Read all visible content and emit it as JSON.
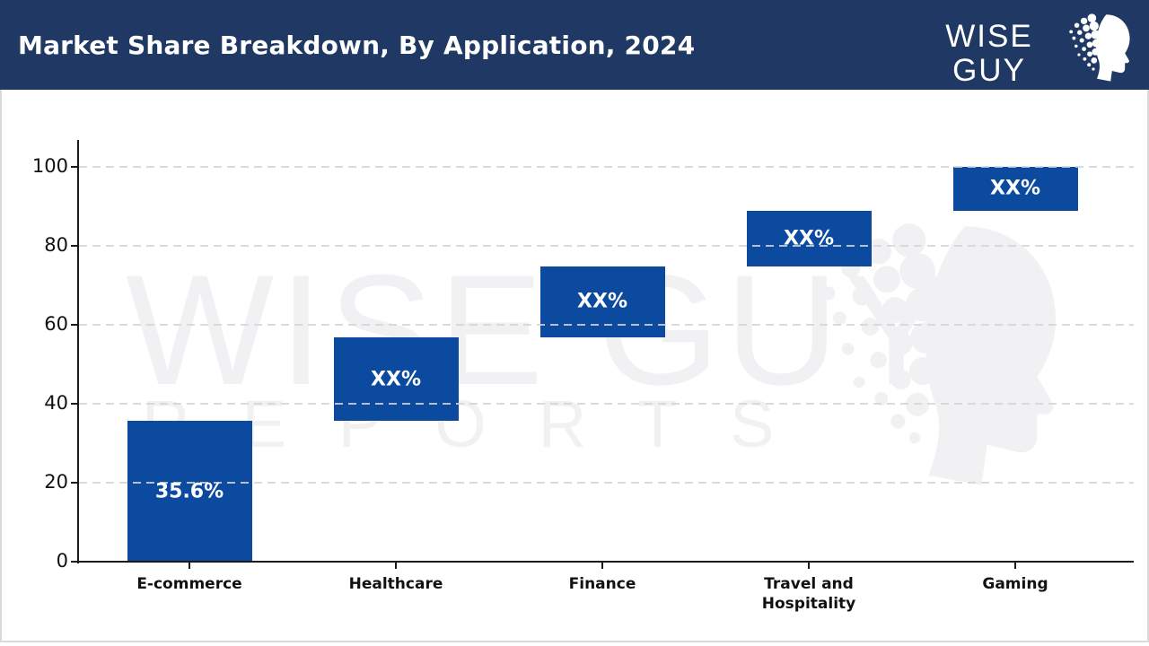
{
  "header": {
    "title": "Market Share Breakdown, By Application, 2024",
    "background_color": "#1F3864",
    "logo": {
      "primary": "WISE GUY",
      "secondary": "REPORTS"
    }
  },
  "watermark": {
    "primary": "WISE GUY",
    "secondary": "REPORTS"
  },
  "chart_data": {
    "type": "bar",
    "variant": "waterfall-floating-bars",
    "title": "Market Share Breakdown, By Application, 2024",
    "categories": [
      "E-commerce",
      "Healthcare",
      "Finance",
      "Travel and Hospitality",
      "Gaming"
    ],
    "category_display_lines": [
      [
        "E-commerce"
      ],
      [
        "Healthcare"
      ],
      [
        "Finance"
      ],
      [
        "Travel and",
        "Hospitality"
      ],
      [
        "Gaming"
      ]
    ],
    "segments": [
      {
        "category": "E-commerce",
        "start": 0,
        "end": 35.6,
        "label": "35.6%"
      },
      {
        "category": "Healthcare",
        "start": 35.6,
        "end": 56.8,
        "label": "XX%"
      },
      {
        "category": "Finance",
        "start": 56.8,
        "end": 74.8,
        "label": "XX%"
      },
      {
        "category": "Travel and Hospitality",
        "start": 74.8,
        "end": 88.9,
        "label": "XX%"
      },
      {
        "category": "Gaming",
        "start": 88.9,
        "end": 100,
        "label": "XX%"
      }
    ],
    "xlabel": "",
    "ylabel": "",
    "ylim": [
      0,
      100
    ],
    "yticks": [
      0,
      20,
      40,
      60,
      80,
      100
    ],
    "grid": "horizontal-dashed",
    "legend": "none",
    "bar_color": "#0B4A9E",
    "bar_label_color": "#FFFFFF",
    "axis_color": "#1A1A1A",
    "gridline_color": "#D9D9D9",
    "header_color": "#1F3864"
  }
}
